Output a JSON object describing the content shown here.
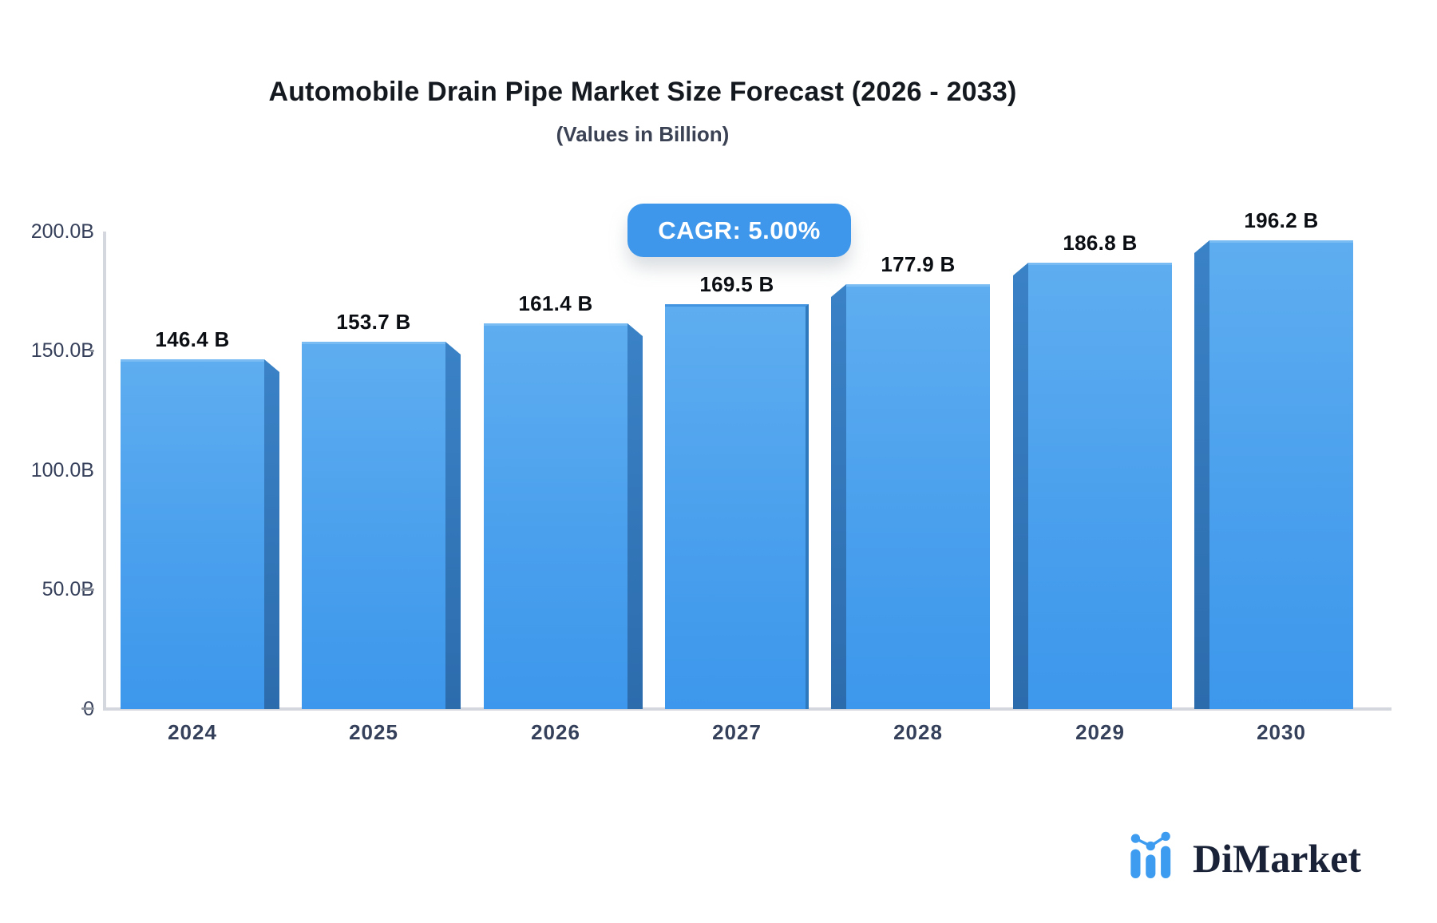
{
  "title": "Automobile Drain Pipe Market Size Forecast (2026 - 2033)",
  "subtitle": "(Values in Billion)",
  "badge": {
    "label": "CAGR: 5.00%"
  },
  "chart_data": {
    "type": "bar",
    "categories": [
      "2024",
      "2025",
      "2026",
      "2027",
      "2028",
      "2029",
      "2030"
    ],
    "values": [
      146.4,
      153.7,
      161.4,
      169.5,
      177.9,
      186.8,
      196.2
    ],
    "value_labels": [
      "146.4 B",
      "153.7 B",
      "161.4 B",
      "169.5 B",
      "177.9 B",
      "186.8 B",
      "196.2 B"
    ],
    "title": "Automobile Drain Pipe Market Size Forecast (2026 - 2033)",
    "subtitle": "(Values in Billion)",
    "cagr_label": "CAGR: 5.00%",
    "xlabel": "",
    "ylabel": "",
    "ylim": [
      0,
      200
    ],
    "yticks": [
      "200.0B",
      "150.0B",
      "100.0B",
      "50.0B",
      "0"
    ],
    "grid": false,
    "legend": false,
    "colors": {
      "bar_face_top": "#5eadf0",
      "bar_face_bottom": "#3d97ec",
      "bar_side": "#2f74b5",
      "badge_background": "#3e97ea",
      "badge_text": "#ffffff",
      "axis_line": "#d4d8de",
      "axis_label": "#36405a",
      "value_label": "#0b0e13",
      "title_text": "#14181f",
      "logo_blue": "#3d9bf0",
      "logo_navy": "#1a2238"
    }
  },
  "logo": {
    "name": "DiMarket",
    "icon": "mini-bar-chart-icon"
  }
}
